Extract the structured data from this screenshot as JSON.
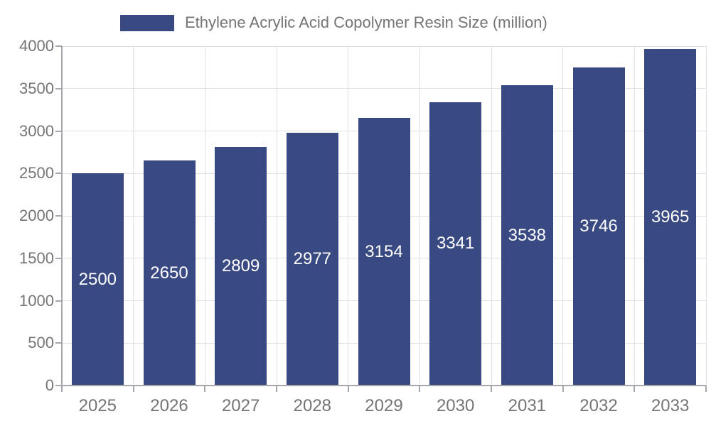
{
  "chart_data": {
    "type": "bar",
    "title": "Ethylene Acrylic Acid Copolymer Resin Size (million)",
    "categories": [
      "2025",
      "2026",
      "2027",
      "2028",
      "2029",
      "2030",
      "2031",
      "2032",
      "2033"
    ],
    "values": [
      2500,
      2650,
      2809,
      2977,
      3154,
      3341,
      3538,
      3746,
      3965
    ],
    "yticks": [
      0,
      500,
      1000,
      1500,
      2000,
      2500,
      3000,
      3500,
      4000
    ],
    "ylim": [
      0,
      4000
    ],
    "xlabel": "",
    "ylabel": "",
    "grid": true,
    "legend_position": "top-center",
    "data_labels": "inside-center",
    "bar_color": "#394A83",
    "data_label_color": "#ffffff",
    "axis_text_color": "#757575",
    "axis_line_color": "#a6a6ad",
    "grid_color": "#e0e0e0",
    "background_color": "#ffffff"
  }
}
